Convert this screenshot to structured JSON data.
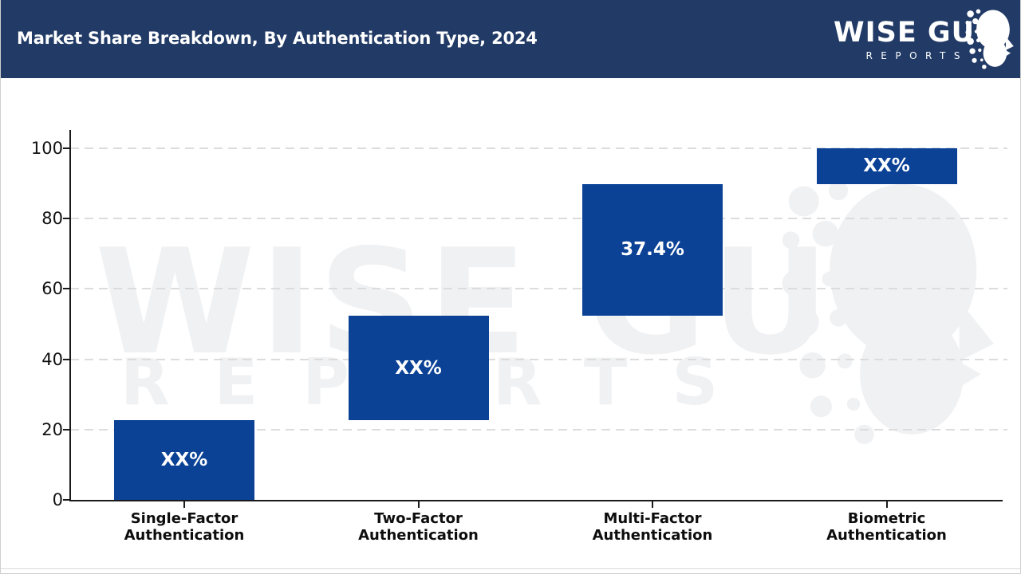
{
  "header": {
    "title": "Market Share Breakdown, By Authentication Type, 2024",
    "logo": {
      "line1": "WISE GUY",
      "line2": "REPORTS",
      "face_icon": "dotted-head-profile"
    }
  },
  "watermark": {
    "line1": "WISE GUY",
    "line2": "REPORTS",
    "face_icon": "dotted-head-profile"
  },
  "colors": {
    "header_bg": "#213a66",
    "bar": "#0b4296",
    "bar_value_label": "#ffffff",
    "watermark": "#f0f1f3",
    "gridline": "#dcdcdc",
    "axis": "#1a1a1a"
  },
  "chart_data": {
    "type": "bar",
    "subtype": "floating-waterfall",
    "title": "Market Share Breakdown, By Authentication Type, 2024",
    "categories": [
      "Single-Factor\nAuthentication",
      "Two-Factor\nAuthentication",
      "Multi-Factor\nAuthentication",
      "Biometric\nAuthentication"
    ],
    "bars": [
      {
        "category": "Single-Factor Authentication",
        "from": 0,
        "to": 22.6,
        "label": "XX%"
      },
      {
        "category": "Two-Factor Authentication",
        "from": 22.6,
        "to": 52.4,
        "label": "XX%"
      },
      {
        "category": "Multi-Factor Authentication",
        "from": 52.4,
        "to": 89.8,
        "label": "37.4%"
      },
      {
        "category": "Biometric Authentication",
        "from": 89.8,
        "to": 100,
        "label": "XX%"
      }
    ],
    "xlabel": "",
    "ylabel": "",
    "y_ticks": [
      0,
      20,
      40,
      60,
      80,
      100
    ],
    "ylim": [
      0,
      105
    ],
    "grid": "horizontal-dashed",
    "legend": "none"
  }
}
